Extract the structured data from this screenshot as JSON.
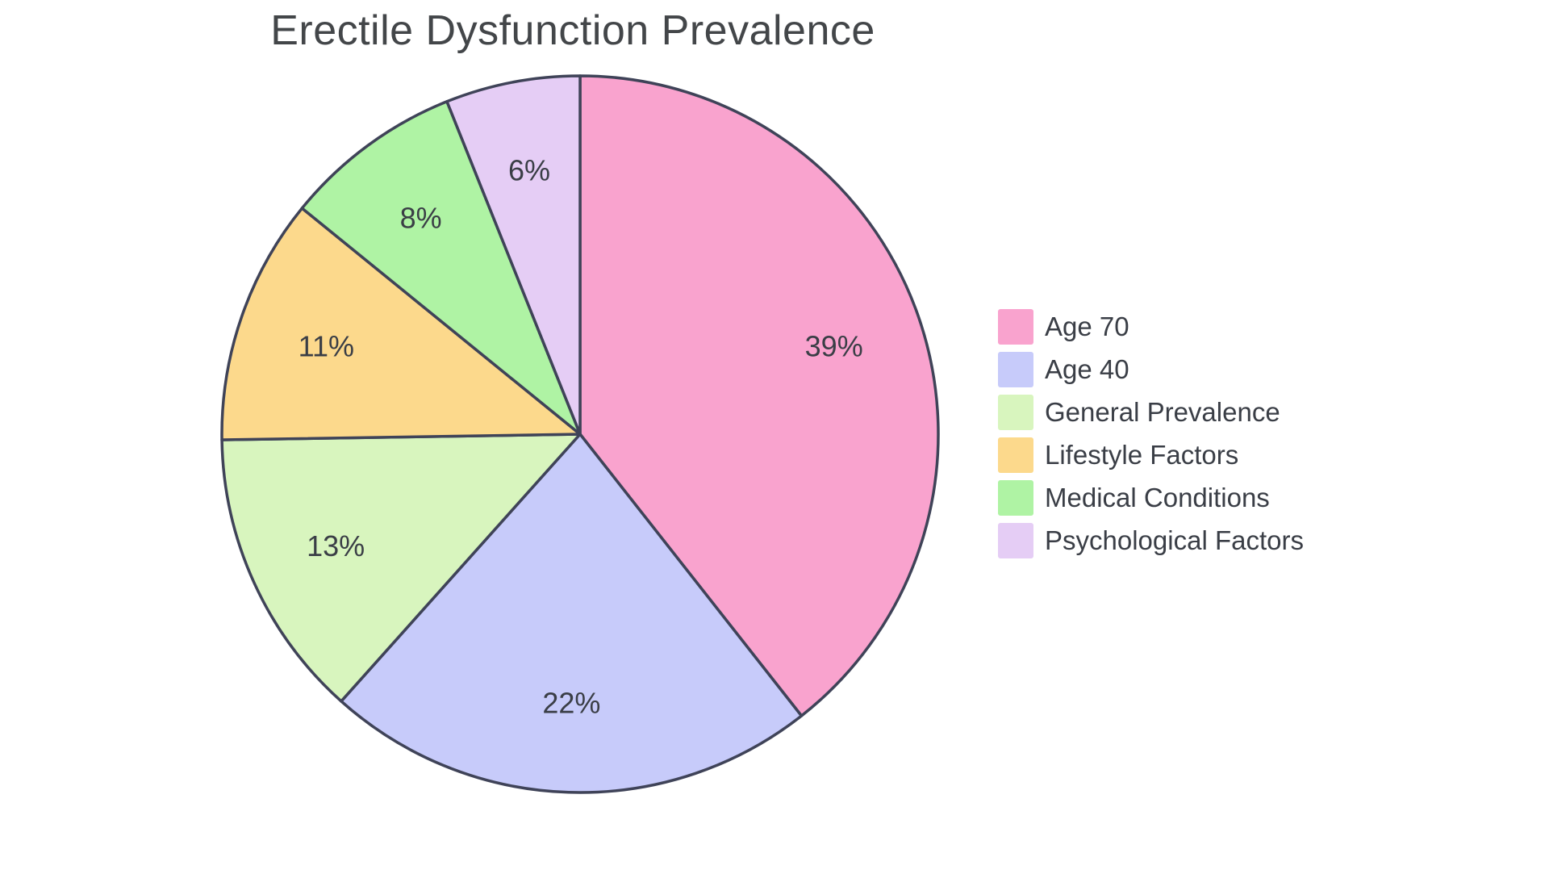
{
  "colors": {
    "background": "#ffffff",
    "outline": "#3f4358",
    "title_text": "#434649",
    "slice_label_text": "#3a3e46",
    "legend_text": "#3a3e46"
  },
  "chart_data": {
    "type": "pie",
    "title": "Erectile Dysfunction Prevalence",
    "categories": [
      "Age 70",
      "Age 40",
      "General Prevalence",
      "Lifestyle Factors",
      "Medical Conditions",
      "Psychological Factors"
    ],
    "values": [
      39,
      22,
      13,
      11,
      8,
      6
    ],
    "displayed_percent_labels": [
      "39%",
      "22%",
      "13%",
      "11%",
      "8%",
      "6%"
    ],
    "slice_colors": [
      "#F9A3CE",
      "#C7CBFA",
      "#D8F5BE",
      "#FCD98C",
      "#AFF3A4",
      "#E5CDF5"
    ],
    "start_position": "12-oclock",
    "direction": "clockwise",
    "legend_position": "right"
  },
  "legend": {
    "items": [
      {
        "label": "Age 70",
        "color": "#F9A3CE"
      },
      {
        "label": "Age 40",
        "color": "#C7CBFA"
      },
      {
        "label": "General Prevalence",
        "color": "#D8F5BE"
      },
      {
        "label": "Lifestyle Factors",
        "color": "#FCD98C"
      },
      {
        "label": "Medical Conditions",
        "color": "#AFF3A4"
      },
      {
        "label": "Psychological Factors",
        "color": "#E5CDF5"
      }
    ]
  }
}
